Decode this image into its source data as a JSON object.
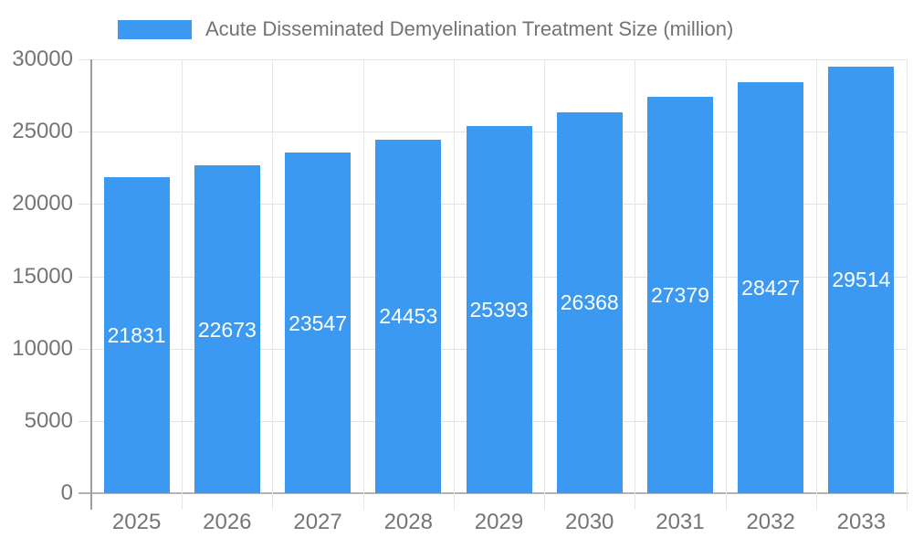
{
  "legend": {
    "series_label": "Acute Disseminated Demyelination Treatment Size (million)",
    "swatch_color": "#3b99f1"
  },
  "chart_data": {
    "type": "bar",
    "title": "Acute Disseminated Demyelination Treatment Size (million)",
    "categories": [
      "2025",
      "2026",
      "2027",
      "2028",
      "2029",
      "2030",
      "2031",
      "2032",
      "2033"
    ],
    "values": [
      21831,
      22673,
      23547,
      24453,
      25393,
      26368,
      27379,
      28427,
      29514
    ],
    "value_labels": [
      "21831",
      "22673",
      "23547",
      "24453",
      "25393",
      "26368",
      "27379",
      "28427",
      "29514"
    ],
    "xlabel": "",
    "ylabel": "",
    "ylim": [
      0,
      30000
    ],
    "y_ticks": [
      0,
      5000,
      10000,
      15000,
      20000,
      25000,
      30000
    ],
    "y_tick_labels": [
      "0",
      "5000",
      "10000",
      "15000",
      "20000",
      "25000",
      "30000"
    ],
    "grid": "on",
    "legend_position": "top",
    "bar_color": "#3b99f1",
    "value_label_color": "#ffffff",
    "axis_text_color": "#757575",
    "grid_color": "#e3e3e3",
    "background_color": "#ffffff"
  }
}
